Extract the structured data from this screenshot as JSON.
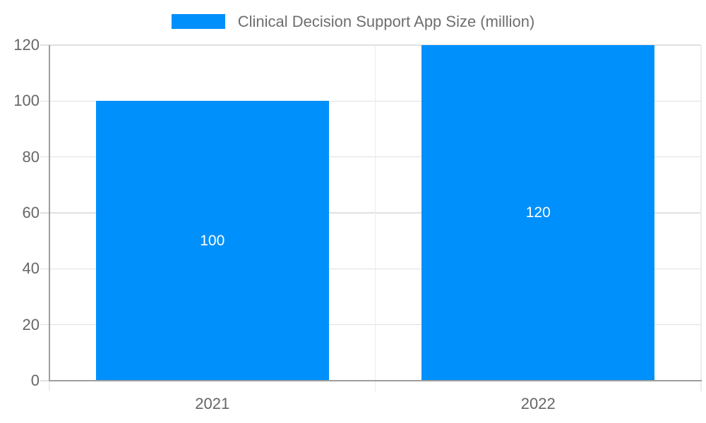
{
  "chart_data": {
    "type": "bar",
    "title": "Clinical Decision Support App Size (million)",
    "xlabel": "",
    "ylabel": "",
    "categories": [
      "2021",
      "2022"
    ],
    "series": [
      {
        "name": "Clinical Decision Support App Size (million)",
        "values": [
          100,
          120
        ]
      }
    ],
    "data_labels": [
      "100",
      "120"
    ],
    "ylim": [
      0,
      120
    ],
    "yticks": [
      0,
      20,
      40,
      60,
      80,
      100,
      120
    ],
    "grid": true,
    "legend_position": "top"
  },
  "colors": {
    "bar": "#0090fb",
    "data_label": "#ffffff",
    "legend_text": "#6e6e6e",
    "axis_label": "#666666",
    "axis_line": "#9e9e9e",
    "grid_line": "#e0e0e0",
    "grid_line_vertical": "#ececec"
  }
}
